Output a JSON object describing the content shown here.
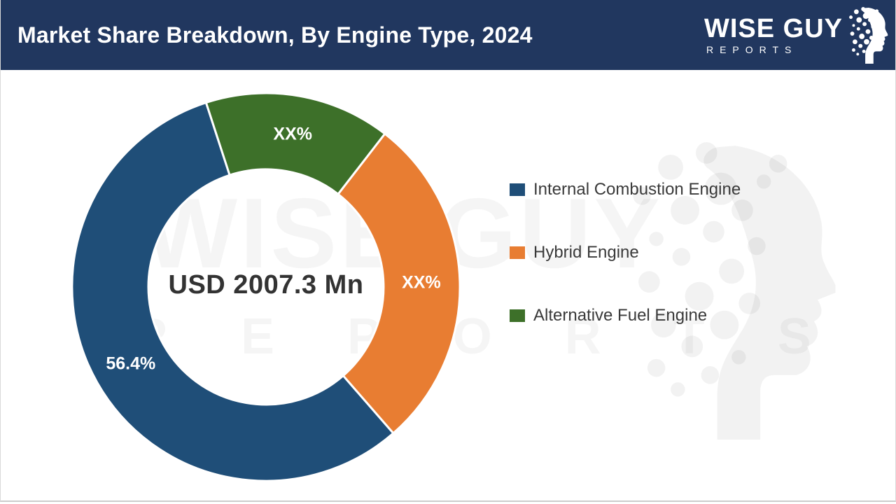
{
  "header": {
    "title": "Market Share Breakdown, By Engine Type, 2024",
    "logo": {
      "line1": "WISE GUY",
      "line2": "REPORTS"
    }
  },
  "watermark": {
    "line1": "WISE GUY",
    "line2": "R E P O R T S"
  },
  "chart_data": {
    "type": "pie",
    "subtype": "donut",
    "center_label": "USD 2007.3 Mn",
    "start_angle_deg": 108,
    "direction": "counterclockwise",
    "legend_position": "right",
    "categories": [
      "Internal Combustion Engine",
      "Hybrid Engine",
      "Alternative Fuel Engine"
    ],
    "slices": [
      {
        "label": "Internal Combustion Engine",
        "display_value": "56.4%",
        "value_pct": 56.4,
        "color": "#1f4e78"
      },
      {
        "label": "Hybrid Engine",
        "display_value": "XX%",
        "value_pct": 28.1,
        "color": "#e87d32"
      },
      {
        "label": "Alternative Fuel Engine",
        "display_value": "XX%",
        "value_pct": 15.5,
        "color": "#3d7029"
      }
    ],
    "colors": {
      "header": "#21375f",
      "label_text": "#ffffff",
      "center_text": "#333333"
    }
  }
}
